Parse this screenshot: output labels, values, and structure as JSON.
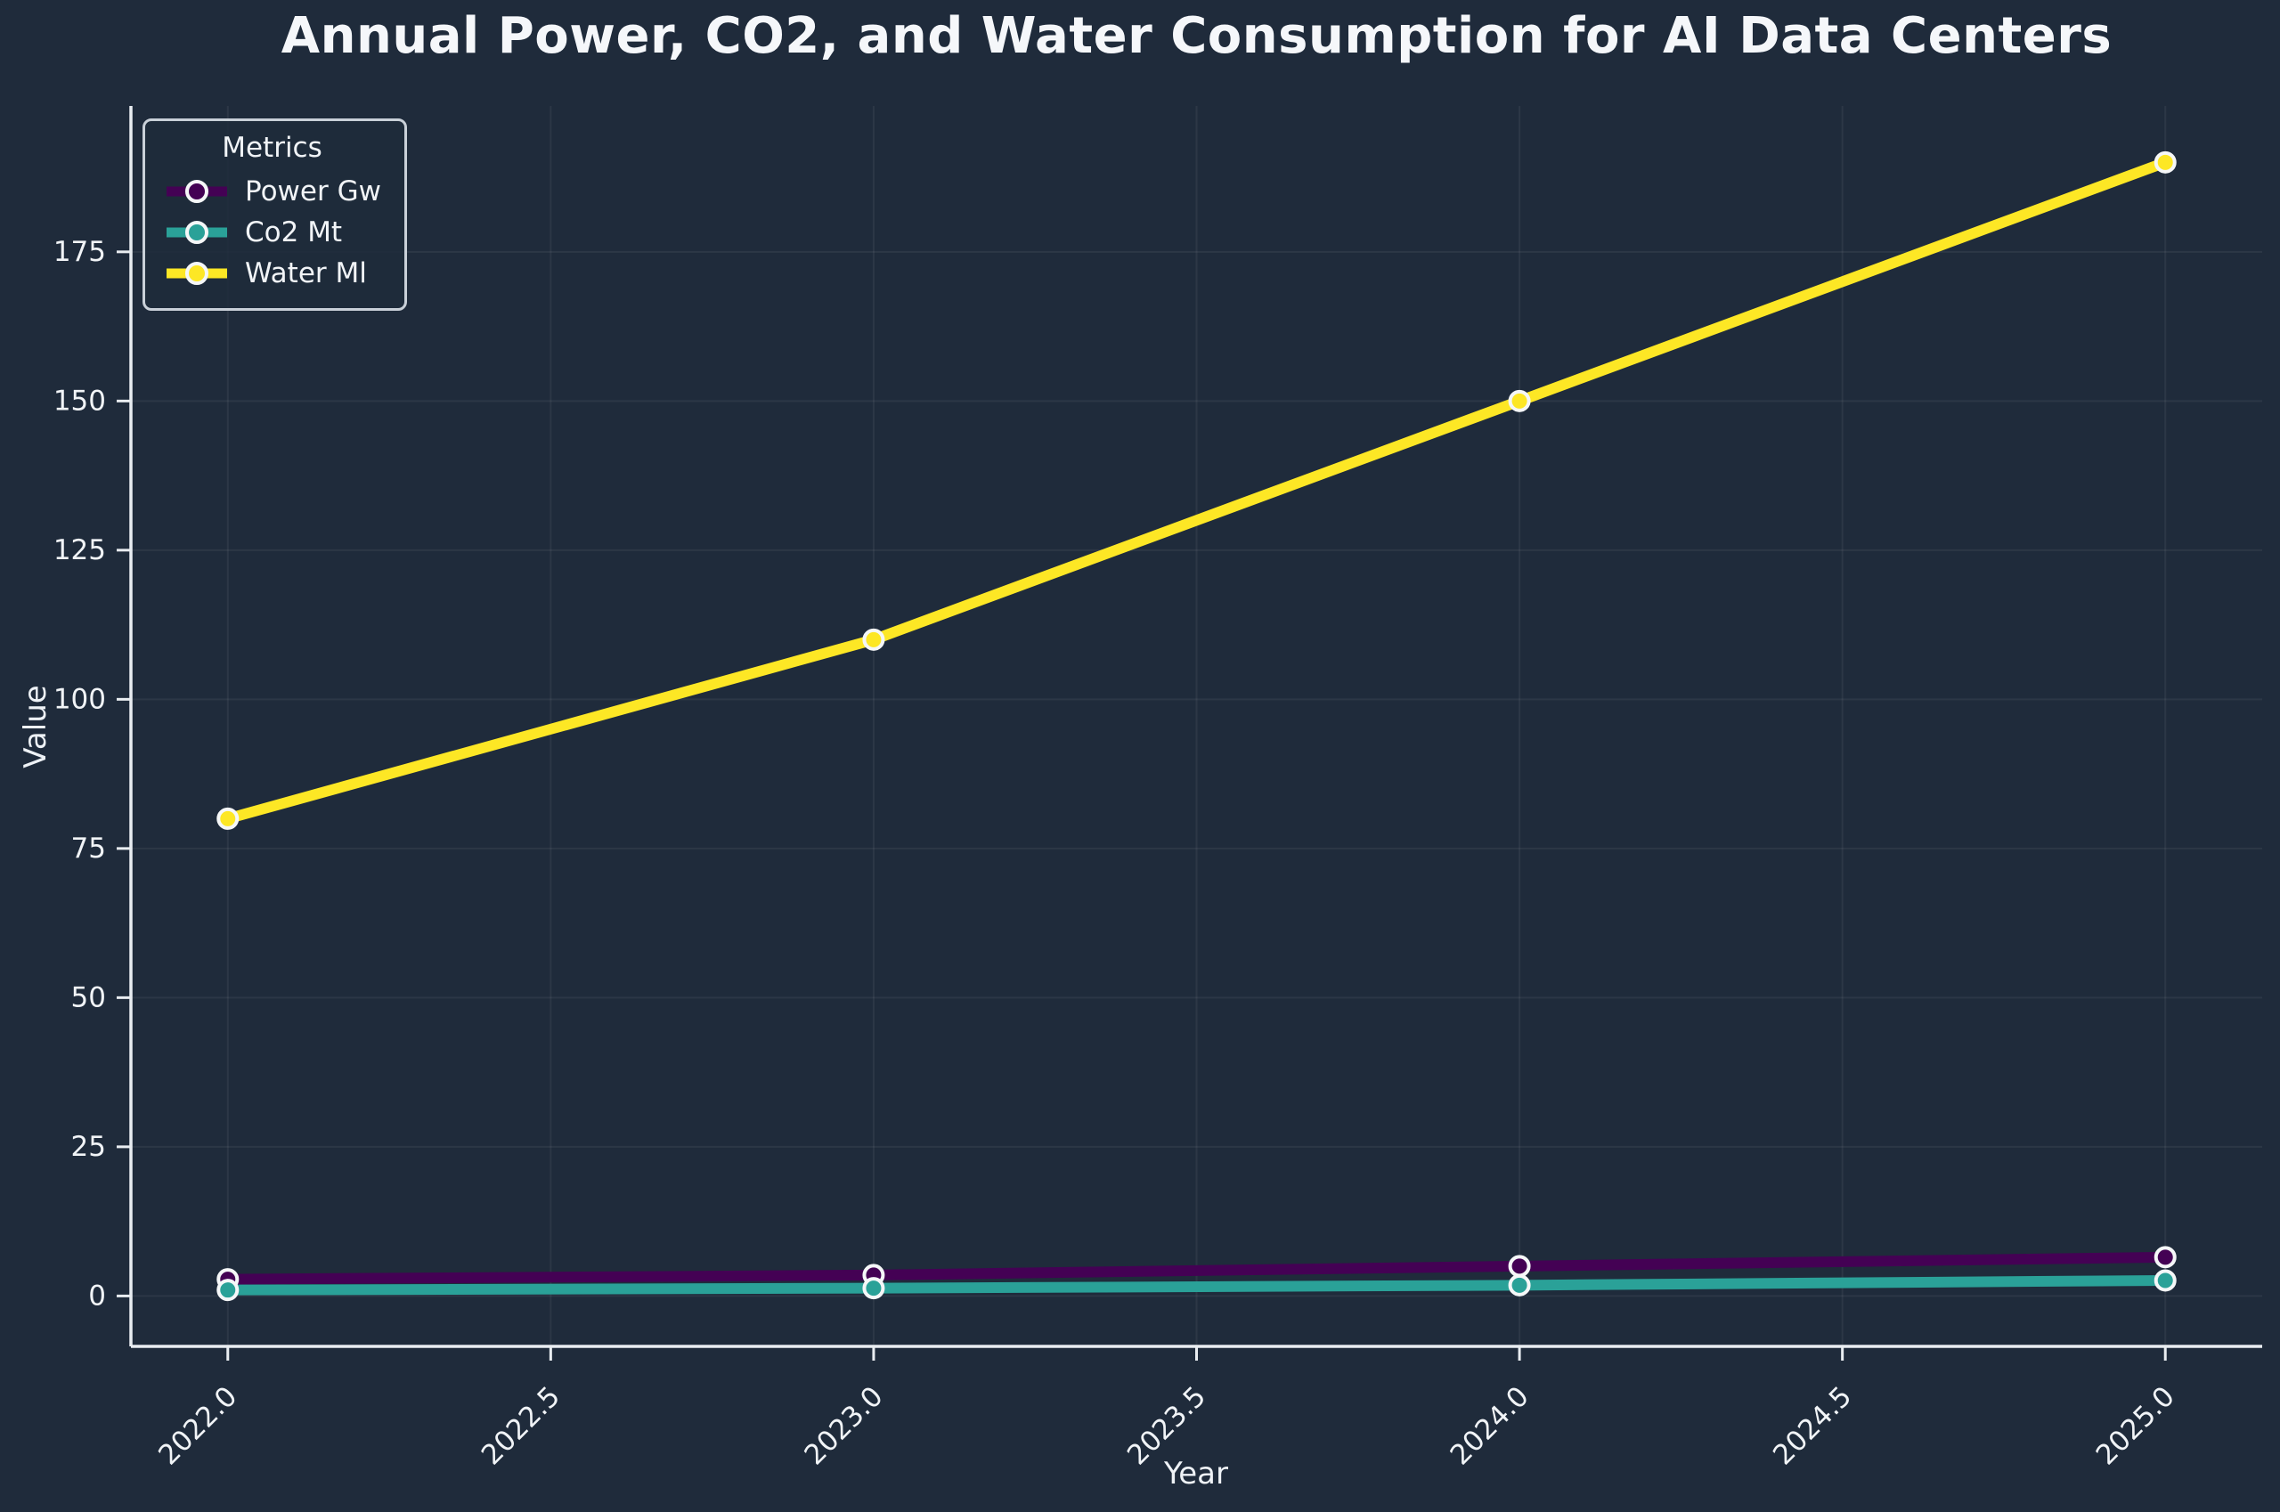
{
  "colors": {
    "background": "#1f2b3b",
    "text": "#f1f4f7",
    "spine": "#e9edf1",
    "grid": "#ffffff",
    "marker_edge": "#f5f7f8",
    "power": "#440154",
    "co2": "#2aa198",
    "water": "#fde725"
  },
  "chart_data": {
    "type": "line",
    "title": "Annual Power, CO2, and Water Consumption for AI Data Centers",
    "xlabel": "Year",
    "ylabel": "Value",
    "x": [
      2022,
      2023,
      2024,
      2025
    ],
    "series": [
      {
        "name": "Power Gw",
        "color": "#440154",
        "values": [
          2.8,
          3.5,
          5.0,
          6.5
        ]
      },
      {
        "name": "Co2 Mt",
        "color": "#2aa198",
        "values": [
          1.0,
          1.3,
          1.8,
          2.6
        ]
      },
      {
        "name": "Water Ml",
        "color": "#fde725",
        "values": [
          80,
          110,
          150,
          190
        ]
      }
    ],
    "legend": {
      "title": "Metrics",
      "position": "upper left"
    },
    "x_ticks": [
      2022.0,
      2022.5,
      2023.0,
      2023.5,
      2024.0,
      2024.5,
      2025.0
    ],
    "x_tick_labels": [
      "2022.0",
      "2022.5",
      "2023.0",
      "2023.5",
      "2024.0",
      "2024.5",
      "2025.0"
    ],
    "y_ticks": [
      0,
      25,
      50,
      75,
      100,
      125,
      150,
      175
    ],
    "y_tick_labels": [
      "0",
      "25",
      "50",
      "75",
      "100",
      "125",
      "150",
      "175"
    ],
    "xlim": [
      2021.85,
      2025.15
    ],
    "ylim": [
      -8.45,
      199.45
    ],
    "grid": true
  }
}
